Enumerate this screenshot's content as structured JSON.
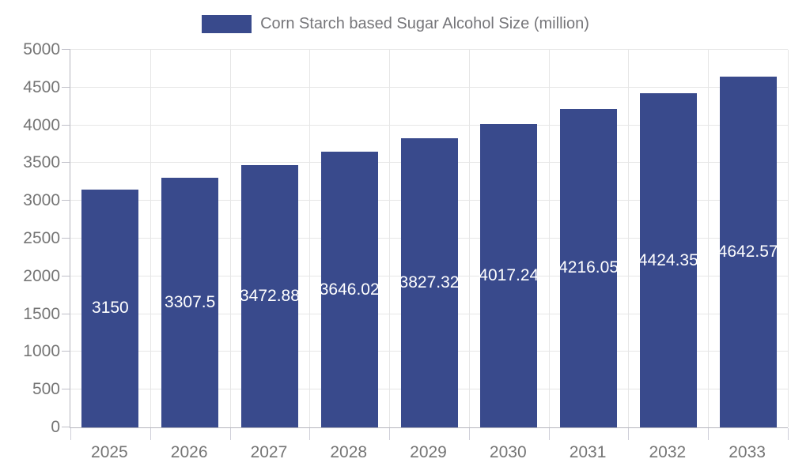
{
  "legend": {
    "label": "Corn Starch based Sugar Alcohol Size (million)"
  },
  "chart_data": {
    "type": "bar",
    "title": "Corn Starch based Sugar Alcohol Size (million)",
    "categories": [
      "2025",
      "2026",
      "2027",
      "2028",
      "2029",
      "2030",
      "2031",
      "2032",
      "2033"
    ],
    "values": [
      3150,
      3307.5,
      3472.88,
      3646.02,
      3827.32,
      4017.24,
      4216.05,
      4424.35,
      4642.57
    ],
    "value_labels": [
      "3150",
      "3307.5",
      "3472.88",
      "3646.02",
      "3827.32",
      "4017.24",
      "4216.05",
      "4424.35",
      "4642.57"
    ],
    "xlabel": "",
    "ylabel": "",
    "ylim": [
      0,
      5000
    ],
    "ytick_step": 500,
    "grid": true,
    "legend_position": "top",
    "bar_label_position": "inside-middle",
    "colors": {
      "bar": "#394A8C",
      "bar_label_text": "#FFFFFF",
      "grid": "#E6E6E6",
      "axis_line": "#B6B6BE",
      "tick": "#CFCFD9",
      "axis_text": "#757575",
      "legend_text": "#76767A"
    }
  }
}
